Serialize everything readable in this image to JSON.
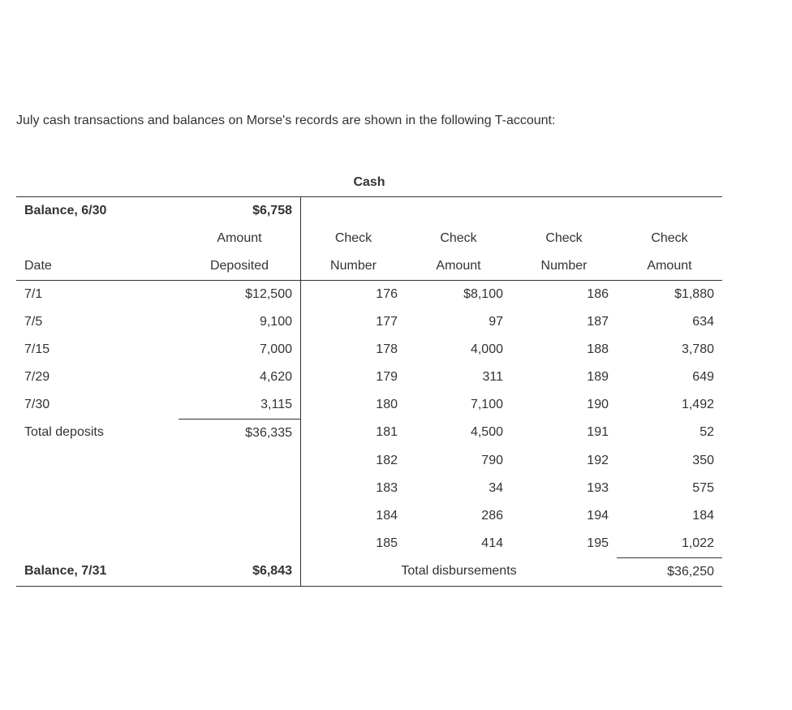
{
  "intro": "July cash transactions and balances on Morse's records are shown in the following T-account:",
  "title": "Cash",
  "open_balance": {
    "label": "Balance, 6/30",
    "amount": "$6,758"
  },
  "headers": {
    "date": "Date",
    "amount_deposited_l1": "Amount",
    "amount_deposited_l2": "Deposited",
    "check_number_l1": "Check",
    "check_number_l2": "Number",
    "check_amount_l1": "Check",
    "check_amount_l2": "Amount"
  },
  "rows": [
    {
      "date": "7/1",
      "deposit": "$12,500",
      "cn1": "176",
      "ca1": "$8,100",
      "cn2": "186",
      "ca2": "$1,880"
    },
    {
      "date": "7/5",
      "deposit": "9,100",
      "cn1": "177",
      "ca1": "97",
      "cn2": "187",
      "ca2": "634"
    },
    {
      "date": "7/15",
      "deposit": "7,000",
      "cn1": "178",
      "ca1": "4,000",
      "cn2": "188",
      "ca2": "3,780"
    },
    {
      "date": "7/29",
      "deposit": "4,620",
      "cn1": "179",
      "ca1": "311",
      "cn2": "189",
      "ca2": "649"
    },
    {
      "date": "7/30",
      "deposit": "3,115",
      "cn1": "180",
      "ca1": "7,100",
      "cn2": "190",
      "ca2": "1,492"
    },
    {
      "date": "Total deposits",
      "deposit": "$36,335",
      "cn1": "181",
      "ca1": "4,500",
      "cn2": "191",
      "ca2": "52"
    },
    {
      "date": "",
      "deposit": "",
      "cn1": "182",
      "ca1": "790",
      "cn2": "192",
      "ca2": "350"
    },
    {
      "date": "",
      "deposit": "",
      "cn1": "183",
      "ca1": "34",
      "cn2": "193",
      "ca2": "575"
    },
    {
      "date": "",
      "deposit": "",
      "cn1": "184",
      "ca1": "286",
      "cn2": "194",
      "ca2": "184"
    },
    {
      "date": "",
      "deposit": "",
      "cn1": "185",
      "ca1": "414",
      "cn2": "195",
      "ca2": "1,022"
    }
  ],
  "close_balance": {
    "label": "Balance, 7/31",
    "amount": "$6,843"
  },
  "disbursements": {
    "label": "Total disbursements",
    "amount": "$36,250"
  }
}
